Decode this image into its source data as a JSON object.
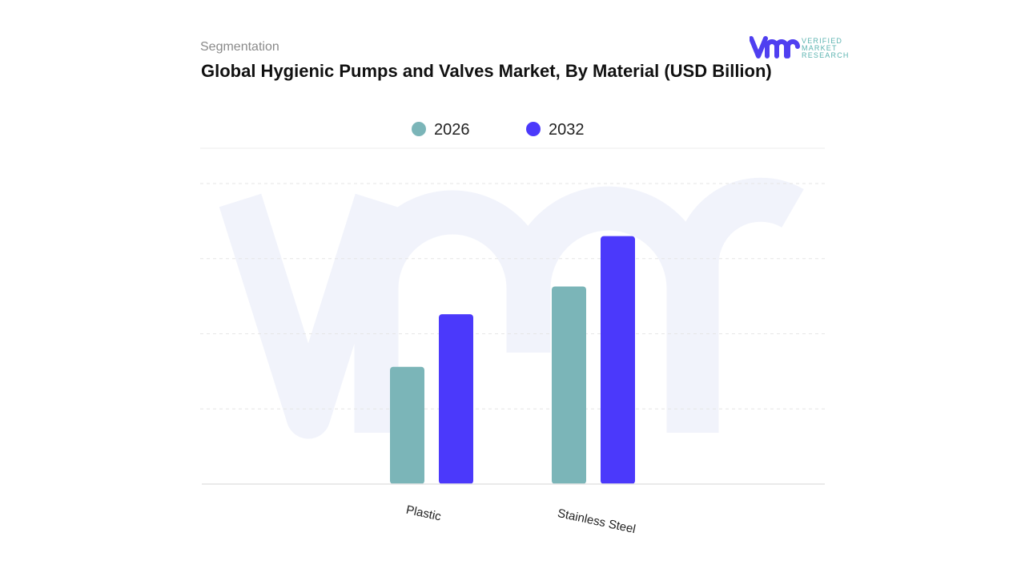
{
  "header": {
    "segment_label": "Segmentation",
    "title": "Global Hygienic Pumps and Valves Market, By Material (USD Billion)"
  },
  "logo": {
    "text": [
      "VERIFIED",
      "MARKET",
      "RESEARCH"
    ],
    "mark": "vmr",
    "colors": {
      "mark": "#4f3ff0",
      "text": "#5bb3b0"
    }
  },
  "chart_data": {
    "type": "bar",
    "title": "Global Hygienic Pumps and Valves Market, By Material (USD Billion)",
    "categories": [
      "Plastic",
      "Stainless Steel"
    ],
    "series": [
      {
        "name": "2026",
        "color": "#7bb5b8",
        "values": [
          1.56,
          2.63
        ]
      },
      {
        "name": "2032",
        "color": "#4b39fb",
        "values": [
          2.26,
          3.3
        ]
      }
    ],
    "ylim": [
      0,
      4
    ],
    "y_ticks_printed": false,
    "grid": true,
    "legend": "top-center",
    "xlabel": "",
    "ylabel": ""
  }
}
